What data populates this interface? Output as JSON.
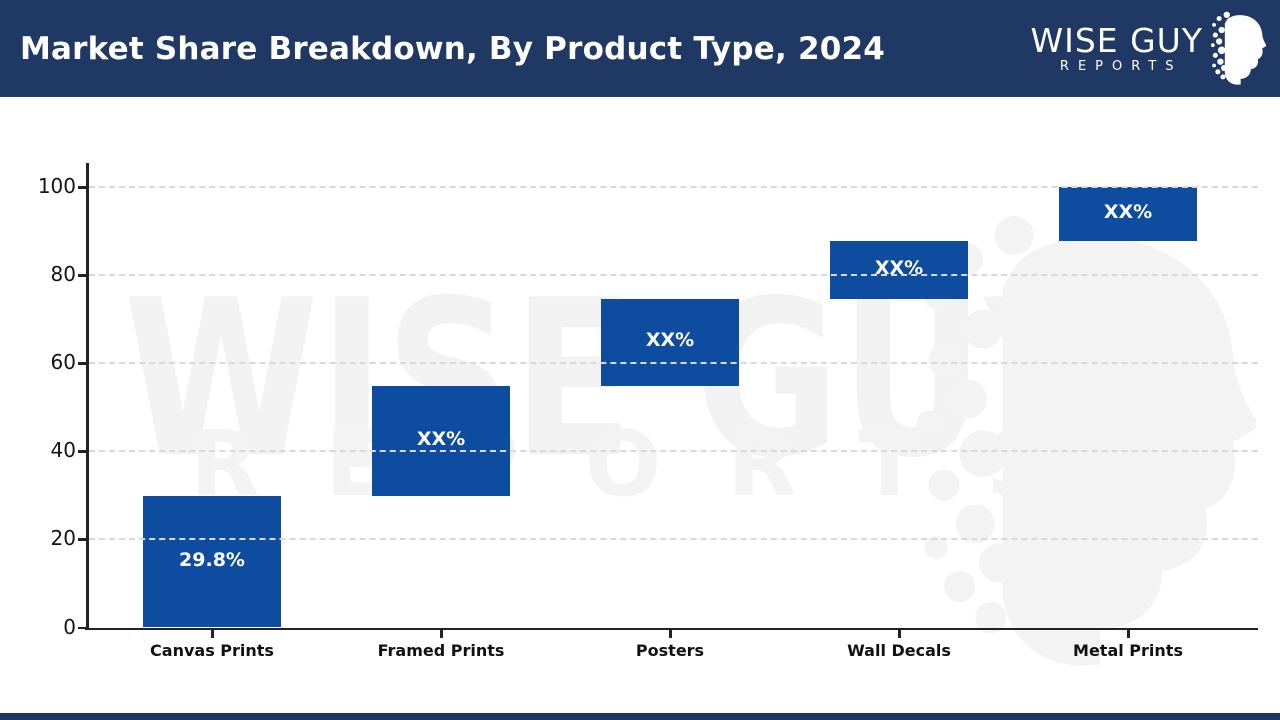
{
  "header": {
    "title": "Market Share Breakdown, By Product Type, 2024",
    "logo": {
      "wordmark": "WISE GUY",
      "subtitle": "REPORTS",
      "icon": "face-profile-dots-icon"
    }
  },
  "watermark": {
    "wordmark": "WISE GUY",
    "subtitle": "REPORTS"
  },
  "chart_data": {
    "type": "bar",
    "subtype": "waterfall-floating-segments",
    "title": "Market Share Breakdown, By Product Type, 2024",
    "categories": [
      "Canvas Prints",
      "Framed Prints",
      "Posters",
      "Wall Decals",
      "Metal Prints"
    ],
    "segments": [
      {
        "category": "Canvas Prints",
        "start": 0,
        "end": 29.8,
        "label": "29.8%"
      },
      {
        "category": "Framed Prints",
        "start": 29.9,
        "end": 54.8,
        "label": "XX%"
      },
      {
        "category": "Posters",
        "start": 54.9,
        "end": 74.5,
        "label": "XX%"
      },
      {
        "category": "Wall Decals",
        "start": 74.6,
        "end": 87.7,
        "label": "XX%"
      },
      {
        "category": "Metal Prints",
        "start": 87.7,
        "end": 100,
        "label": "XX%"
      }
    ],
    "xlabel": "",
    "ylabel": "",
    "ylim": [
      0,
      105
    ],
    "yticks": [
      0,
      20,
      40,
      60,
      80,
      100
    ],
    "grid": "horizontal-dashed-over-bars",
    "legend": "none"
  },
  "colors": {
    "header_bg": "#1f3864",
    "bar": "#0d4c9f",
    "bar_label": "#ffffff",
    "grid": "#d9d9d9",
    "axis": "#222222",
    "watermark": "#f2f2f2"
  }
}
